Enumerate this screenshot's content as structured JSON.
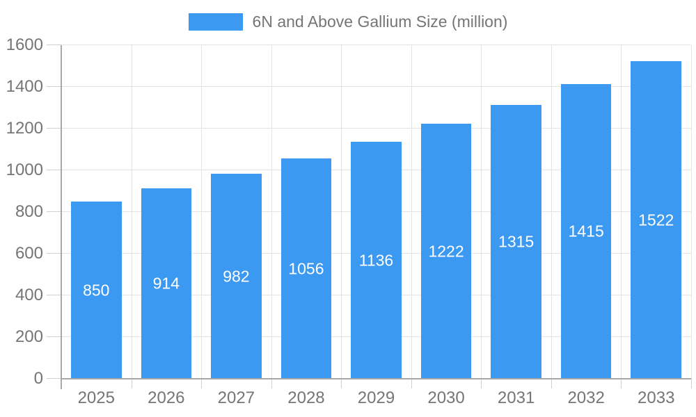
{
  "legend": {
    "label": "6N and Above Gallium Size (million)"
  },
  "chart_data": {
    "type": "bar",
    "title": "6N and Above Gallium Size (million)",
    "categories": [
      "2025",
      "2026",
      "2027",
      "2028",
      "2029",
      "2030",
      "2031",
      "2032",
      "2033"
    ],
    "values": [
      850,
      914,
      982,
      1056,
      1136,
      1222,
      1315,
      1415,
      1522
    ],
    "xlabel": "",
    "ylabel": "",
    "ylim": [
      0,
      1600
    ],
    "ytick_step": 200,
    "yticks": [
      0,
      200,
      400,
      600,
      800,
      1000,
      1200,
      1400,
      1600
    ],
    "grid": true,
    "legend_position": "top",
    "value_labels": "inside-middle"
  },
  "colors": {
    "bar": "#3B99F1",
    "axis": "#a8a8a8",
    "grid": "#e4e4e4",
    "tick": "#cfcfcf",
    "label": "#757575",
    "value_label": "#ffffff",
    "background": "#ffffff"
  }
}
